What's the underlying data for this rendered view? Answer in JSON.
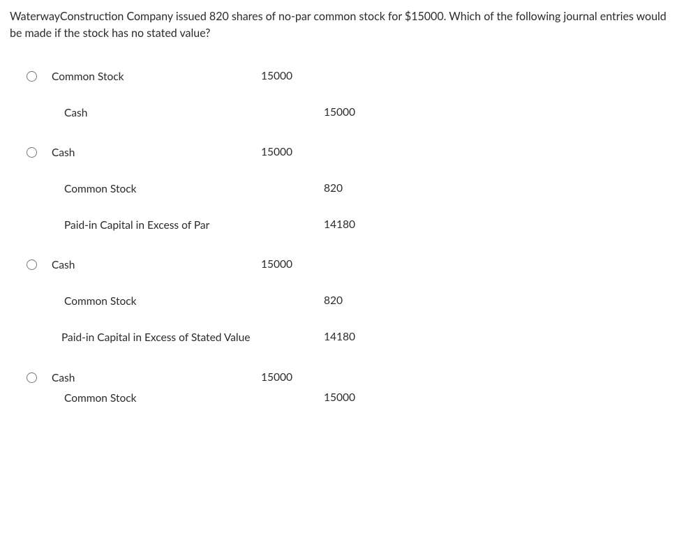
{
  "question": "WaterwayConstruction Company issued 820 shares of no-par common stock for $15000. Which of the following journal entries would be made if the stock has no stated value?",
  "options": [
    {
      "rows": [
        {
          "account": "Common Stock",
          "indent": 0,
          "debit": "15000",
          "credit": ""
        },
        {
          "account": "Cash",
          "indent": 1,
          "debit": "",
          "credit": "15000"
        }
      ]
    },
    {
      "rows": [
        {
          "account": "Cash",
          "indent": 0,
          "debit": "15000",
          "credit": ""
        },
        {
          "account": "Common Stock",
          "indent": 1,
          "debit": "",
          "credit": "820"
        },
        {
          "account": "Paid-in Capital in Excess of Par",
          "indent": 1,
          "debit": "",
          "credit": "14180"
        }
      ]
    },
    {
      "rows": [
        {
          "account": "Cash",
          "indent": 0,
          "debit": "15000",
          "credit": ""
        },
        {
          "account": "Common Stock",
          "indent": 1,
          "debit": "",
          "credit": "820"
        },
        {
          "account": "Paid-in Capital in Excess of Stated Value",
          "indent": 2,
          "debit": "",
          "credit": "14180"
        }
      ]
    },
    {
      "tight": true,
      "rows": [
        {
          "account": "Cash",
          "indent": 0,
          "debit": "15000",
          "credit": ""
        },
        {
          "account": "Common Stock",
          "indent": 1,
          "debit": "",
          "credit": "15000"
        }
      ]
    }
  ]
}
